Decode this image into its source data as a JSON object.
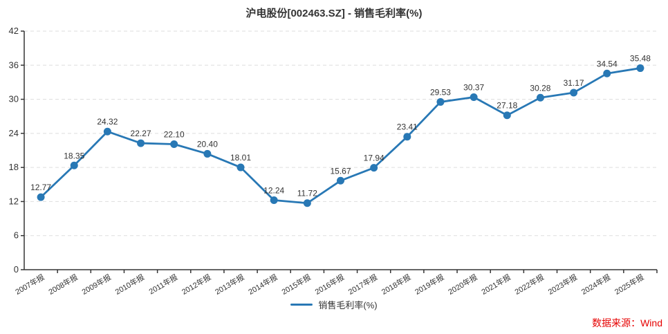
{
  "title": "沪电股份[002463.SZ] - 销售毛利率(%)",
  "legend": {
    "label": "销售毛利率(%)"
  },
  "source_note": "数据来源：Wind",
  "colors": {
    "line": "#2878b5",
    "marker": "#2878b5",
    "grid": "#dddddd",
    "axis": "#333333",
    "tick_text": "#333333",
    "data_label_text": "#333333",
    "source_text": "#e60000",
    "background": "#ffffff"
  },
  "chart_data": {
    "type": "line",
    "title": "沪电股份[002463.SZ] - 销售毛利率(%)",
    "categories": [
      "2007年报",
      "2008年报",
      "2009年报",
      "2010年报",
      "2011年报",
      "2012年报",
      "2013年报",
      "2014年报",
      "2015年报",
      "2016年报",
      "2017年报",
      "2018年报",
      "2019年报",
      "2020年报",
      "2021年报",
      "2022年报",
      "2023年报",
      "2024年报",
      "2025年报"
    ],
    "series": [
      {
        "name": "销售毛利率(%)",
        "values": [
          12.77,
          18.35,
          24.32,
          22.27,
          22.1,
          20.4,
          18.01,
          12.24,
          11.72,
          15.67,
          17.94,
          23.41,
          29.53,
          30.37,
          27.18,
          30.28,
          31.17,
          34.54,
          35.48
        ]
      }
    ],
    "xlabel": "",
    "ylabel": "",
    "ylim": [
      0,
      42
    ],
    "yticks": [
      0,
      6,
      12,
      18,
      24,
      30,
      36,
      42
    ],
    "grid": "horizontal-dashed",
    "legend_position": "bottom",
    "x_tick_rotation": -30,
    "data_labels": true
  }
}
